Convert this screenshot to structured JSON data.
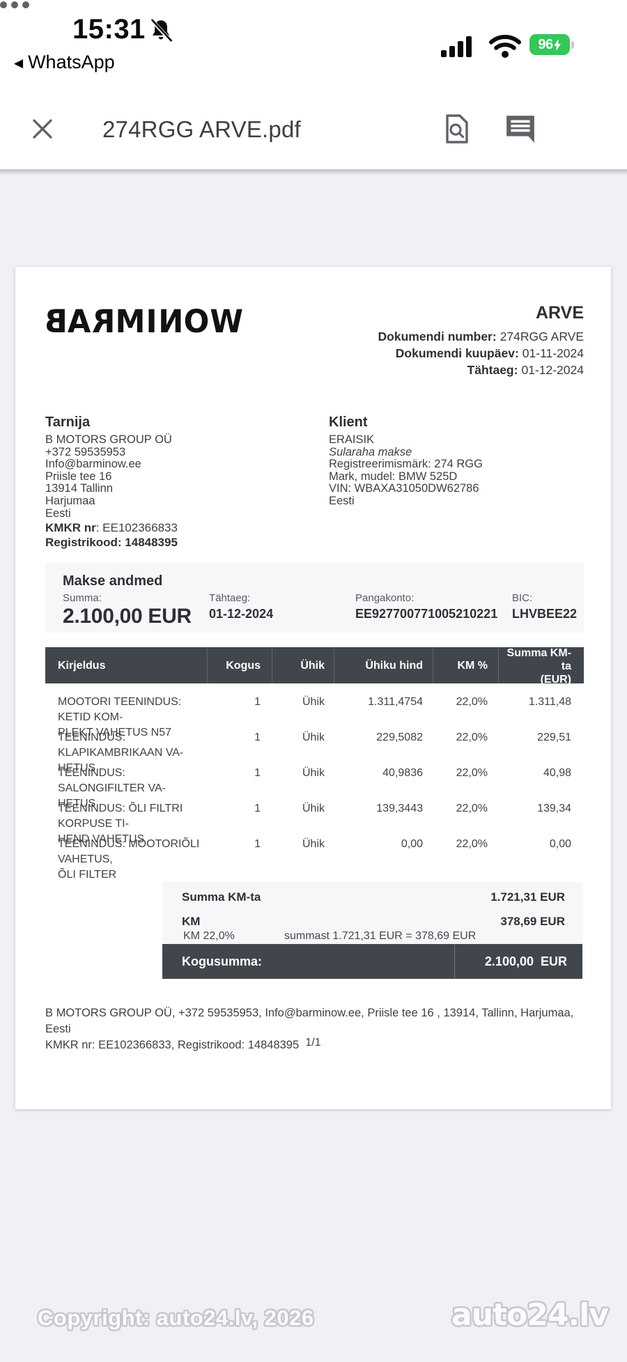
{
  "status_bar": {
    "time": "15:31",
    "back_app": "WhatsApp",
    "battery_percent": "96"
  },
  "toolbar": {
    "title": "274RGG ARVE.pdf"
  },
  "colors": {
    "accent_green": "#34c759",
    "table_header": "#41464c",
    "toolbar_icon": "#5f6368"
  },
  "invoice": {
    "logo": "BARMINOW",
    "logo_flipped_indices": [
      0,
      2,
      5
    ],
    "header": {
      "title": "ARVE",
      "fields": [
        {
          "label": "Dokumendi number:",
          "value": "274RGG ARVE"
        },
        {
          "label": "Dokumendi kuupäev:",
          "value": "01-11-2024"
        },
        {
          "label": "Tähtaeg:",
          "value": "01-12-2024"
        }
      ]
    },
    "supplier": {
      "heading": "Tarnija",
      "lines": [
        "B MOTORS GROUP OÜ",
        "+372 59535953",
        "Info@barminow.ee",
        "Priisle tee 16",
        "13914 Tallinn",
        "Harjumaa",
        "Eesti"
      ],
      "vat_label": "KMKR nr",
      "vat_value": ": EE102366833",
      "reg_line": "Registrikood: 14848395"
    },
    "client": {
      "heading": "Klient",
      "name": "ERAISIK",
      "payment_method": "Sularaha makse",
      "reg_mark": "Registreerimismärk: 274 RGG",
      "make_model": "Mark, mudel: BMW 525D",
      "vin": "VIN: WBAXA31050DW62786",
      "country": "Eesti"
    },
    "payment": {
      "heading": "Makse andmed",
      "fields": [
        {
          "label": "Summa:",
          "value": "2.100,00 EUR"
        },
        {
          "label": "Tähtaeg:",
          "value": "01-12-2024"
        },
        {
          "label": "Pangakonto:",
          "value": "EE927700771005210221"
        },
        {
          "label": "BIC:",
          "value": "LHVBEE22"
        }
      ]
    },
    "table": {
      "headers": [
        "Kirjeldus",
        "Kogus",
        "Ühik",
        "Ühiku hind",
        "KM %",
        "Summa KM-ta\n(EUR)"
      ],
      "rows": [
        {
          "desc1": "MOOTORI TEENINDUS: KETID KOM-",
          "desc2": "PLEKT VAHETUS N57",
          "qty": "1",
          "unit": "Ühik",
          "price": "1.311,4754",
          "vat": "22,0%",
          "sum": "1.311,48"
        },
        {
          "desc1": "TEENINDUS: KLAPIKAMBRIKAAN VA-",
          "desc2": "HETUS",
          "qty": "1",
          "unit": "Ühik",
          "price": "229,5082",
          "vat": "22,0%",
          "sum": "229,51"
        },
        {
          "desc1": "TEENINDUS: SALONGIFILTER VA-",
          "desc2": "HETUS",
          "qty": "1",
          "unit": "Ühik",
          "price": "40,9836",
          "vat": "22,0%",
          "sum": "40,98"
        },
        {
          "desc1": "TEENINDUS: ÕLI FILTRI KORPUSE TI-",
          "desc2": "HEND VAHETUS",
          "qty": "1",
          "unit": "Ühik",
          "price": "139,3443",
          "vat": "22,0%",
          "sum": "139,34"
        },
        {
          "desc1": "TEENINDUS: MOOTORIÕLI VAHETUS,",
          "desc2": "ÕLI FILTER",
          "qty": "1",
          "unit": "Ühik",
          "price": "0,00",
          "vat": "22,0%",
          "sum": "0,00"
        }
      ]
    },
    "summary": {
      "subtotal_label": "Summa KM-ta",
      "subtotal_value": "1.721,31 EUR",
      "vat_label": "KM",
      "vat_value": "378,69 EUR",
      "vat_note_left": "KM 22,0%",
      "vat_note_right": "summast 1.721,31 EUR = 378,69 EUR",
      "total_label": "Kogusumma:",
      "total_value": "2.100,00  EUR"
    },
    "footer": {
      "line1": "B MOTORS GROUP OÜ, +372 59535953, Info@barminow.ee, Priisle tee 16 , 13914, Tallinn, Harjumaa, Eesti",
      "line2": "KMKR nr: EE102366833, Registrikood: 14848395",
      "page": "1/1"
    }
  },
  "watermarks": {
    "copyright": "Copyright: auto24.lv, 2026",
    "brand": "auto24.lv"
  }
}
